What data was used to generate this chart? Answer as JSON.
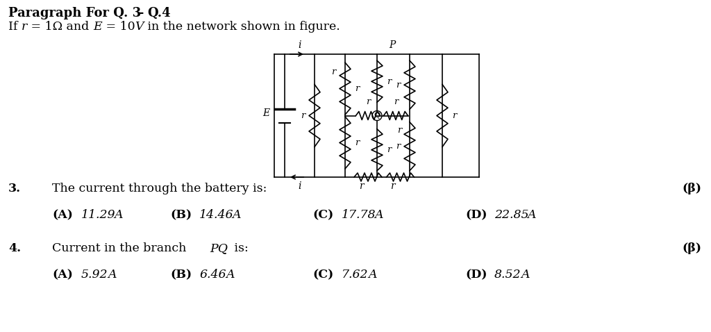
{
  "bg_color": "#ffffff",
  "text_color": "#000000",
  "title1": "Paragraph For Q. 3",
  "title1_dash": " – ",
  "title1_end": "Q.4",
  "line2_parts": [
    "If ",
    "r",
    " = 1Ω and ",
    "E",
    " = 10",
    "V",
    " in the network shown in figure."
  ],
  "line2_italic": [
    false,
    true,
    false,
    true,
    false,
    true,
    false
  ],
  "q3_num": "3.",
  "q3_text": "The current through the battery is:",
  "q3_beta": "(β)",
  "q3_opts": [
    {
      "lbl": "(A)",
      "num": "11.29",
      "unit": "A"
    },
    {
      "lbl": "(B)",
      "num": "14.46",
      "unit": "A"
    },
    {
      "lbl": "(C)",
      "num": "17.78",
      "unit": "A"
    },
    {
      "lbl": "(D)",
      "num": "22.85",
      "unit": "A"
    }
  ],
  "q4_num": "4.",
  "q4_text_plain": "Current in the branch ",
  "q4_text_italic": "PQ",
  "q4_text_end": " is:",
  "q4_beta": "(β)",
  "q4_opts": [
    {
      "lbl": "(A)",
      "num": "5.92",
      "unit": "A"
    },
    {
      "lbl": "(B)",
      "num": "6.46",
      "unit": "A"
    },
    {
      "lbl": "(C)",
      "num": "7.62",
      "unit": "A"
    },
    {
      "lbl": "(D)",
      "num": "8.52",
      "unit": "A"
    }
  ],
  "fs_title": 13,
  "fs_body": 12.5,
  "fs_small": 10,
  "fs_circuit": 9.5
}
